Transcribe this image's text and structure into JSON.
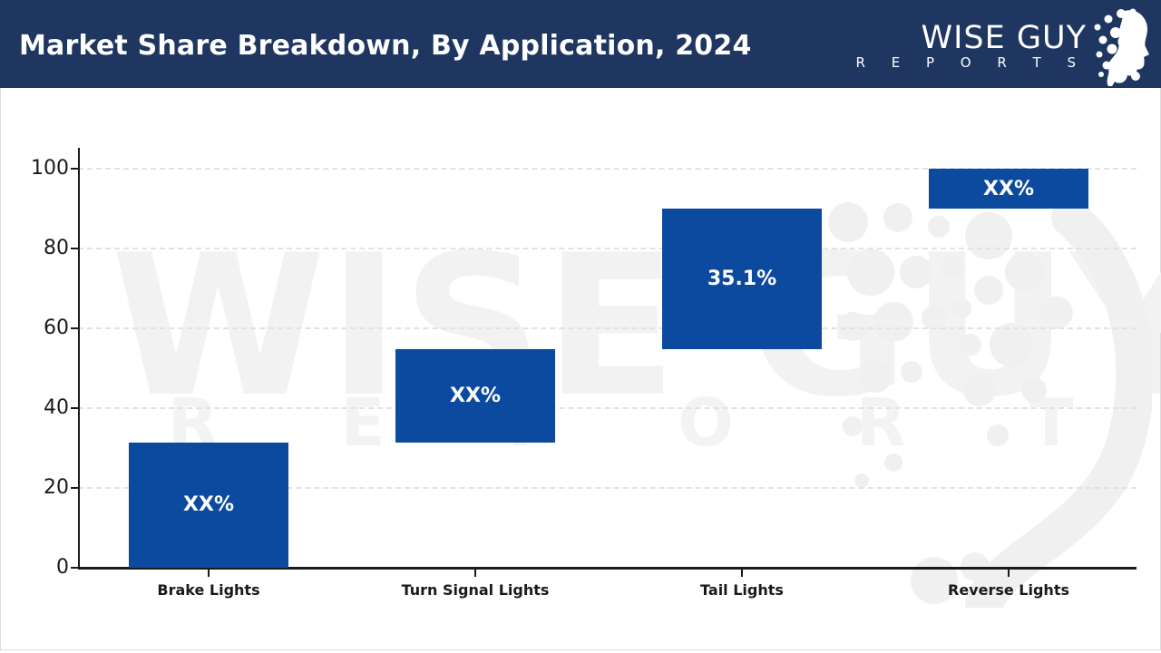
{
  "header": {
    "title": "Market Share Breakdown, By Application, 2024",
    "logo": {
      "name_line": "WISE GUY",
      "reports_line": "R E P O R T S"
    }
  },
  "watermark": {
    "name_line": "WISE GUY",
    "reports_line": "R E P O R T S"
  },
  "chart_data": {
    "type": "bar",
    "variant": "floating-segment-waterfall",
    "title": "Market Share Breakdown, By Application, 2024",
    "categories": [
      "Brake Lights",
      "Turn Signal Lights",
      "Tail Lights",
      "Reverse Lights"
    ],
    "series": [
      {
        "name": "Market Share",
        "bars": [
          {
            "category": "Brake Lights",
            "start": 0,
            "end": 31.4,
            "label": "XX%"
          },
          {
            "category": "Turn Signal Lights",
            "start": 31.4,
            "end": 54.8,
            "label": "XX%"
          },
          {
            "category": "Tail Lights",
            "start": 54.8,
            "end": 89.9,
            "label": "35.1%"
          },
          {
            "category": "Reverse Lights",
            "start": 89.9,
            "end": 100,
            "label": "XX%"
          }
        ]
      }
    ],
    "xlabel": "",
    "ylabel": "",
    "yticks": [
      0,
      20,
      40,
      60,
      80,
      100
    ],
    "ylim": [
      0,
      107
    ],
    "grid": "horizontal-dashed",
    "legend": "none",
    "bar_color": "#0c4aa0",
    "bar_label_color": "#ffffff",
    "axis_color": "#1a1a1a",
    "gridline_color": "#e2e2e2",
    "header_color": "#1f3660"
  }
}
